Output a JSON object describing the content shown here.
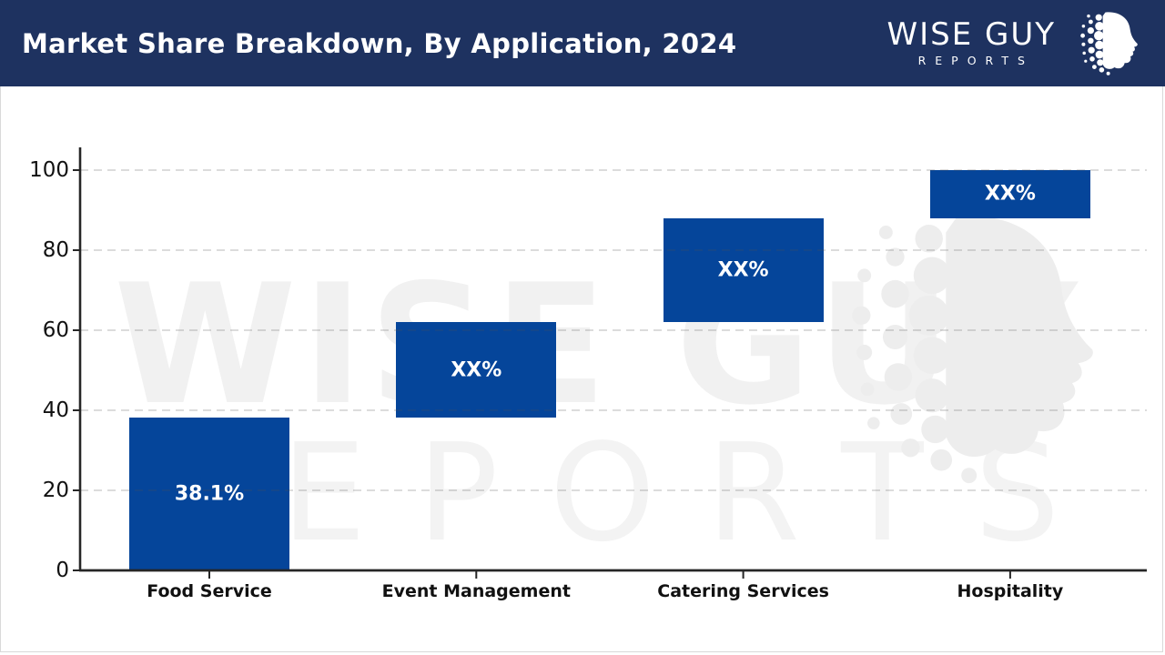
{
  "header": {
    "title": "Market Share Breakdown, By Application, 2024",
    "bg_color": "#1e3260",
    "logo": {
      "line1": "WISE GUY",
      "line2": "REPORTS"
    }
  },
  "watermark": {
    "line1": "WISE GUY",
    "line2": "REPORTS"
  },
  "chart_data": {
    "type": "bar",
    "subtype": "floating-waterfall",
    "title": "Market Share Breakdown, By Application, 2024",
    "categories": [
      "Food Service",
      "Event Management",
      "Catering Services",
      "Hospitality"
    ],
    "segments": [
      {
        "category": "Food Service",
        "start": 0,
        "end": 38.1,
        "label": "38.1%"
      },
      {
        "category": "Event Management",
        "start": 38.1,
        "end": 62,
        "label": "XX%"
      },
      {
        "category": "Catering Services",
        "start": 62,
        "end": 88,
        "label": "XX%"
      },
      {
        "category": "Hospitality",
        "start": 88,
        "end": 100,
        "label": "XX%"
      }
    ],
    "yticks": [
      0,
      20,
      40,
      60,
      80,
      100
    ],
    "ylim": [
      0,
      105
    ],
    "xlabel": "",
    "ylabel": "",
    "bar_color": "#05459a",
    "bar_label_color": "#ffffff",
    "grid": "horizontal-dashed",
    "legend": "none"
  }
}
